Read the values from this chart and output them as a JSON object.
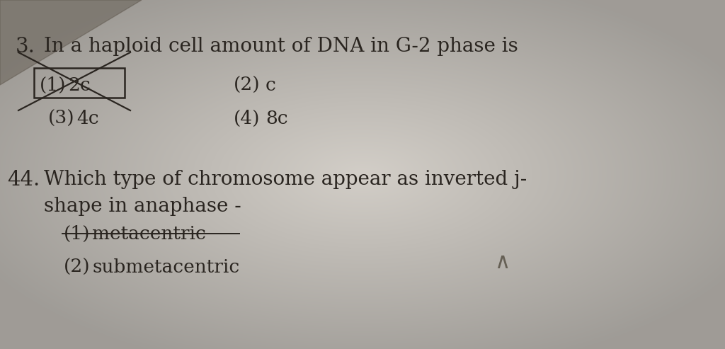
{
  "bg_color": "#b8b0a4",
  "center_color": "#d4cfc8",
  "question_number": "3.",
  "question_text": "In a haploid cell amount of DNA in G-2 phase is",
  "option1_num": "(1)",
  "option1_text": "2c",
  "option2_num": "(2)",
  "option2_text": "c",
  "option3_num": "(3)",
  "option3_text": "4c",
  "option4_num": "(4)",
  "option4_text": "8c",
  "question2_number": "44.",
  "question2_line1": "Which type of chromosome appear as inverted j-",
  "question2_line2": "shape in anaphase -",
  "sub_option1_num": "(1)",
  "sub_option1_text": "metacentric",
  "sub_option2_num": "(2)",
  "sub_option2_text": "submetacentric",
  "text_color": "#2a2520",
  "box_color": "#2a2520",
  "font_size_question": 20,
  "font_size_options": 19,
  "font_size_number": 21
}
